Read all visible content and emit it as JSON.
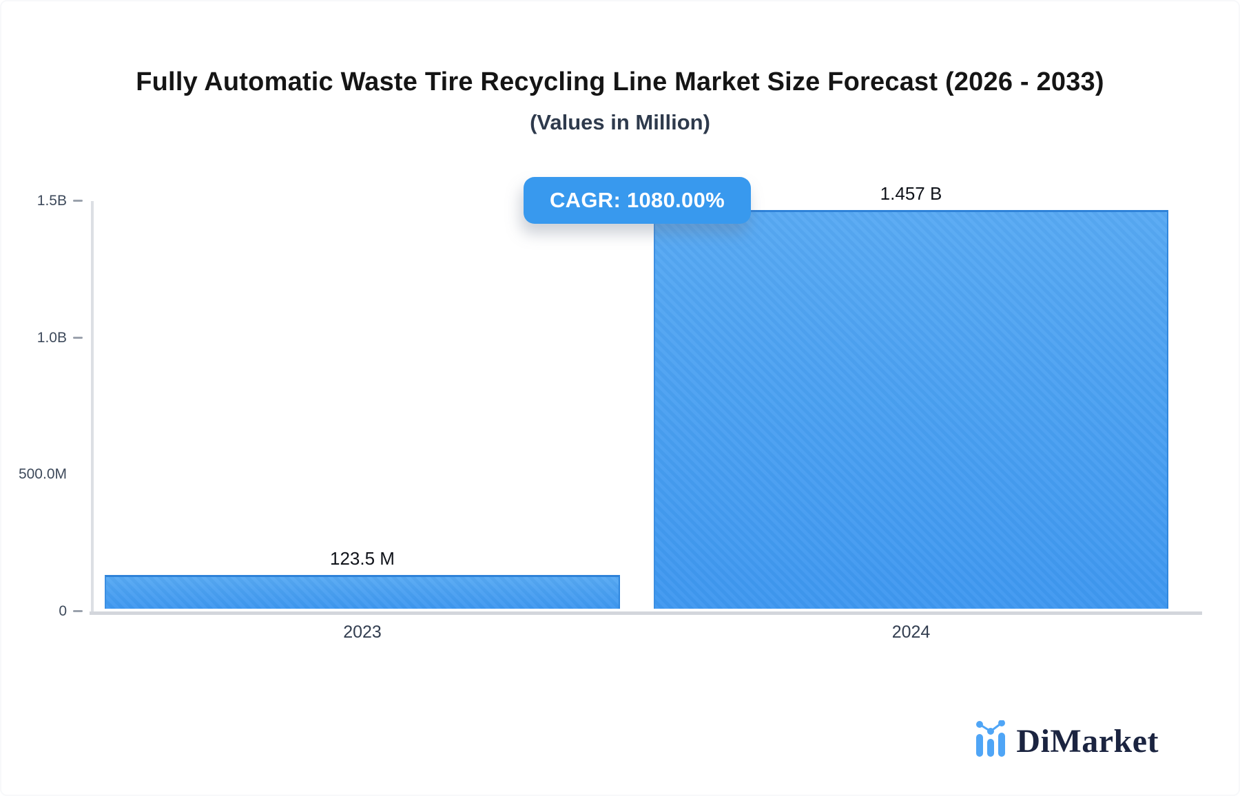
{
  "title": "Fully Automatic Waste Tire Recycling Line Market Size Forecast (2026 - 2033)",
  "subtitle": "(Values in Million)",
  "cagr_badge": {
    "label": "CAGR: 1080.00%"
  },
  "logo": {
    "text": "DiMarket",
    "icon": "bar-chart-logo-icon"
  },
  "colors": {
    "bar_fill_top": "#57a9f3",
    "bar_fill_bottom": "#3e97f0",
    "bar_border": "#2f82d8",
    "badge_blue": "#3899ee",
    "axis_line": "#d3d6dc",
    "axis_label": "#3e4a5b",
    "logo_navy": "#1b2440",
    "logo_blue": "#4fa5f6"
  },
  "chart_data": {
    "type": "bar",
    "title": "Fully Automatic Waste Tire Recycling Line Market Size Forecast (2026 - 2033)",
    "subtitle": "(Values in Million)",
    "categories": [
      "2023",
      "2024"
    ],
    "values": [
      123.5,
      1457
    ],
    "bar_labels": [
      "123.5 M",
      "1.457 B"
    ],
    "cagr_percent": 1080.0,
    "ylim": [
      0,
      1500
    ],
    "yticks": [
      {
        "label": "1.5B",
        "value": 1500,
        "tick": true
      },
      {
        "label": "1.0B",
        "value": 1000,
        "tick": true
      },
      {
        "label": "500.0M",
        "value": 500,
        "tick": false
      },
      {
        "label": "0",
        "value": 0,
        "tick": true
      }
    ],
    "grid": false,
    "legend": false
  }
}
